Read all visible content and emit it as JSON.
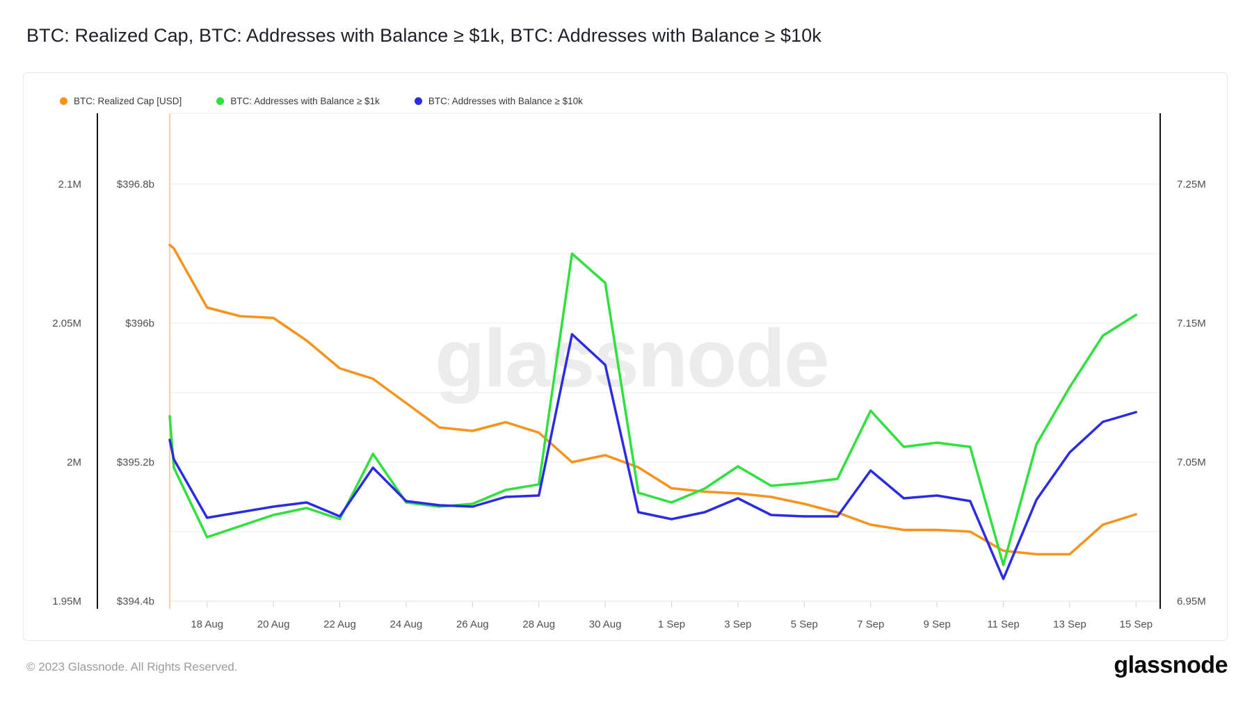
{
  "title": "BTC: Realized Cap, BTC: Addresses with Balance ≥ $1k, BTC: Addresses with Balance ≥ $10k",
  "legend": [
    {
      "label": "BTC: Realized Cap [USD]",
      "color": "#F7931A"
    },
    {
      "label": "BTC: Addresses with Balance ≥ $1k",
      "color": "#2EE13C"
    },
    {
      "label": "BTC: Addresses with Balance ≥ $10k",
      "color": "#2B2BE6"
    }
  ],
  "watermark": "glassnode",
  "footer": {
    "copyright": "© 2023 Glassnode. All Rights Reserved.",
    "logo_text": "glassnode"
  },
  "chart_data": {
    "type": "line",
    "title": "",
    "grid": true,
    "legend_position": "top-left",
    "dates": [
      "17 Aug",
      "18 Aug",
      "19 Aug",
      "20 Aug",
      "21 Aug",
      "22 Aug",
      "23 Aug",
      "24 Aug",
      "25 Aug",
      "26 Aug",
      "27 Aug",
      "28 Aug",
      "29 Aug",
      "30 Aug",
      "31 Aug",
      "1 Sep",
      "2 Sep",
      "3 Sep",
      "4 Sep",
      "5 Sep",
      "6 Sep",
      "7 Sep",
      "8 Sep",
      "9 Sep",
      "10 Sep",
      "11 Sep",
      "12 Sep",
      "13 Sep",
      "14 Sep",
      "15 Sep"
    ],
    "x_tick_labels": [
      "18 Aug",
      "20 Aug",
      "22 Aug",
      "24 Aug",
      "26 Aug",
      "28 Aug",
      "30 Aug",
      "1 Sep",
      "3 Sep",
      "5 Sep",
      "7 Sep",
      "9 Sep",
      "11 Sep",
      "13 Sep",
      "15 Sep"
    ],
    "axes": {
      "left_outer": {
        "tick_labels": [
          "2.1M",
          "2.05M",
          "2M",
          "1.95M"
        ],
        "tick_values": [
          2.1,
          2.05,
          2.0,
          1.95
        ],
        "axis_color": "#111111"
      },
      "left_inner": {
        "tick_labels": [
          "$396.8b",
          "$396b",
          "$395.2b",
          "$394.4b"
        ],
        "tick_values": [
          396.8,
          396.0,
          395.2,
          394.4
        ],
        "axis_color": "#f9d196"
      },
      "right": {
        "tick_labels": [
          "7.25M",
          "7.15M",
          "7.05M",
          "6.95M"
        ],
        "tick_values": [
          7.25,
          7.15,
          7.05,
          6.95
        ],
        "axis_color": "#111111"
      }
    },
    "series": [
      {
        "name": "BTC: Realized Cap [USD]",
        "color": "#F7931A",
        "axis": "left_inner",
        "unit": "$ billion",
        "edge_value": 396.45,
        "values": [
          396.43,
          396.09,
          396.04,
          396.03,
          395.9,
          395.74,
          395.68,
          395.54,
          395.4,
          395.38,
          395.43,
          395.37,
          395.2,
          395.24,
          395.17,
          395.05,
          395.03,
          395.02,
          395.0,
          394.96,
          394.91,
          394.84,
          394.81,
          394.81,
          394.8,
          394.69,
          394.67,
          394.67,
          394.84,
          394.9
        ]
      },
      {
        "name": "BTC: Addresses with Balance ≥ $1k",
        "color": "#2EE13C",
        "axis": "right",
        "unit": "million addresses",
        "edge_value": 7.083,
        "values": [
          7.046,
          6.996,
          7.004,
          7.012,
          7.017,
          7.009,
          7.056,
          7.021,
          7.018,
          7.02,
          7.03,
          7.034,
          7.2,
          7.179,
          7.028,
          7.021,
          7.031,
          7.047,
          7.033,
          7.035,
          7.038,
          7.087,
          7.061,
          7.064,
          7.061,
          6.976,
          7.063,
          7.104,
          7.141,
          7.156
        ]
      },
      {
        "name": "BTC: Addresses with Balance ≥ $10k",
        "color": "#2B2BE6",
        "axis": "left_outer",
        "unit": "million addresses",
        "edge_value": 2.008,
        "values": [
          2.001,
          1.98,
          1.982,
          1.984,
          1.9855,
          1.9805,
          1.998,
          1.986,
          1.9845,
          1.984,
          1.9875,
          1.988,
          2.046,
          2.035,
          1.982,
          1.9795,
          1.982,
          1.987,
          1.981,
          1.9805,
          1.9805,
          1.997,
          1.987,
          1.988,
          1.986,
          1.958,
          1.9865,
          2.0035,
          2.0145,
          2.018
        ]
      }
    ]
  }
}
